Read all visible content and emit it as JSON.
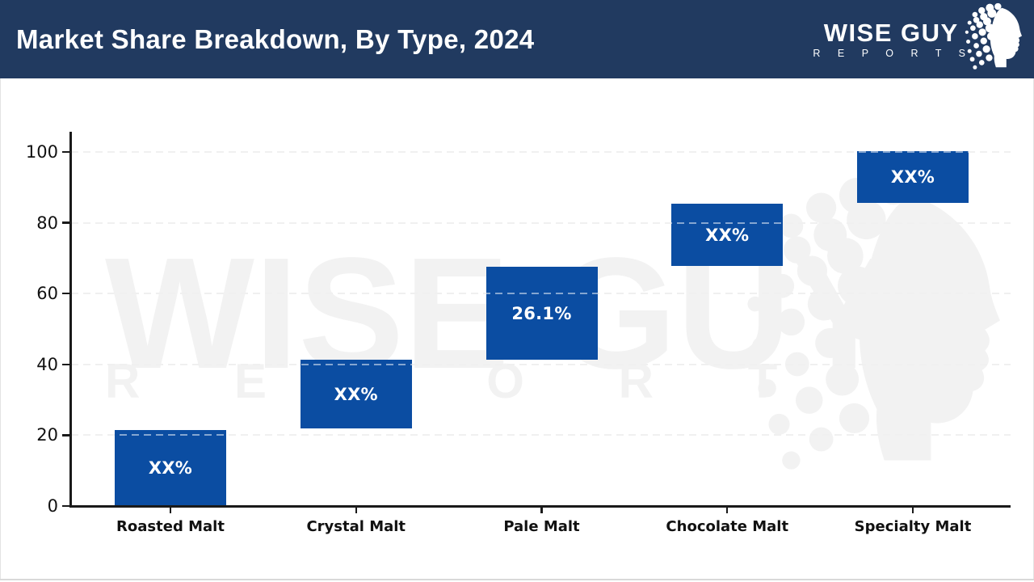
{
  "header": {
    "title": "Market Share Breakdown, By Type, 2024",
    "logo": {
      "line1": "WISE GUY",
      "line2": "R E P O R T S"
    }
  },
  "watermark": {
    "line1": "WISE GUY",
    "line2": "R E P O R T S"
  },
  "colors": {
    "header_bg": "#213a60",
    "bar": "#0b4da2",
    "bar_label": "#ffffff",
    "axis": "#1a1a1a",
    "tick_text": "#111111",
    "gridline": "#e0e0e0",
    "grid_over_bar": "rgba(255,255,255,0.5)",
    "watermark": "#f2f2f2",
    "page_bg": "#ffffff",
    "edge_line": "#d9d9d9"
  },
  "chart_data": {
    "type": "bar",
    "subtype": "waterfall-floating-bars",
    "title": "Market Share Breakdown, By Type, 2024",
    "xlabel": "",
    "ylabel": "",
    "categories": [
      "Roasted Malt",
      "Crystal Malt",
      "Pale Malt",
      "Chocolate Malt",
      "Specialty Malt"
    ],
    "bars": [
      {
        "category": "Roasted Malt",
        "start": 0,
        "end": 21.5,
        "label": "XX%"
      },
      {
        "category": "Crystal Malt",
        "start": 21.9,
        "end": 41.3,
        "label": "XX%"
      },
      {
        "category": "Pale Malt",
        "start": 41.3,
        "end": 67.5,
        "label": "26.1%"
      },
      {
        "category": "Chocolate Malt",
        "start": 67.7,
        "end": 85.4,
        "label": "XX%"
      },
      {
        "category": "Specialty Malt",
        "start": 85.5,
        "end": 100.3,
        "label": "XX%"
      }
    ],
    "yticks": [
      0,
      20,
      40,
      60,
      80,
      100
    ],
    "ylim": [
      0,
      105.6
    ],
    "grid": "horizontal dashed",
    "legend": null
  }
}
